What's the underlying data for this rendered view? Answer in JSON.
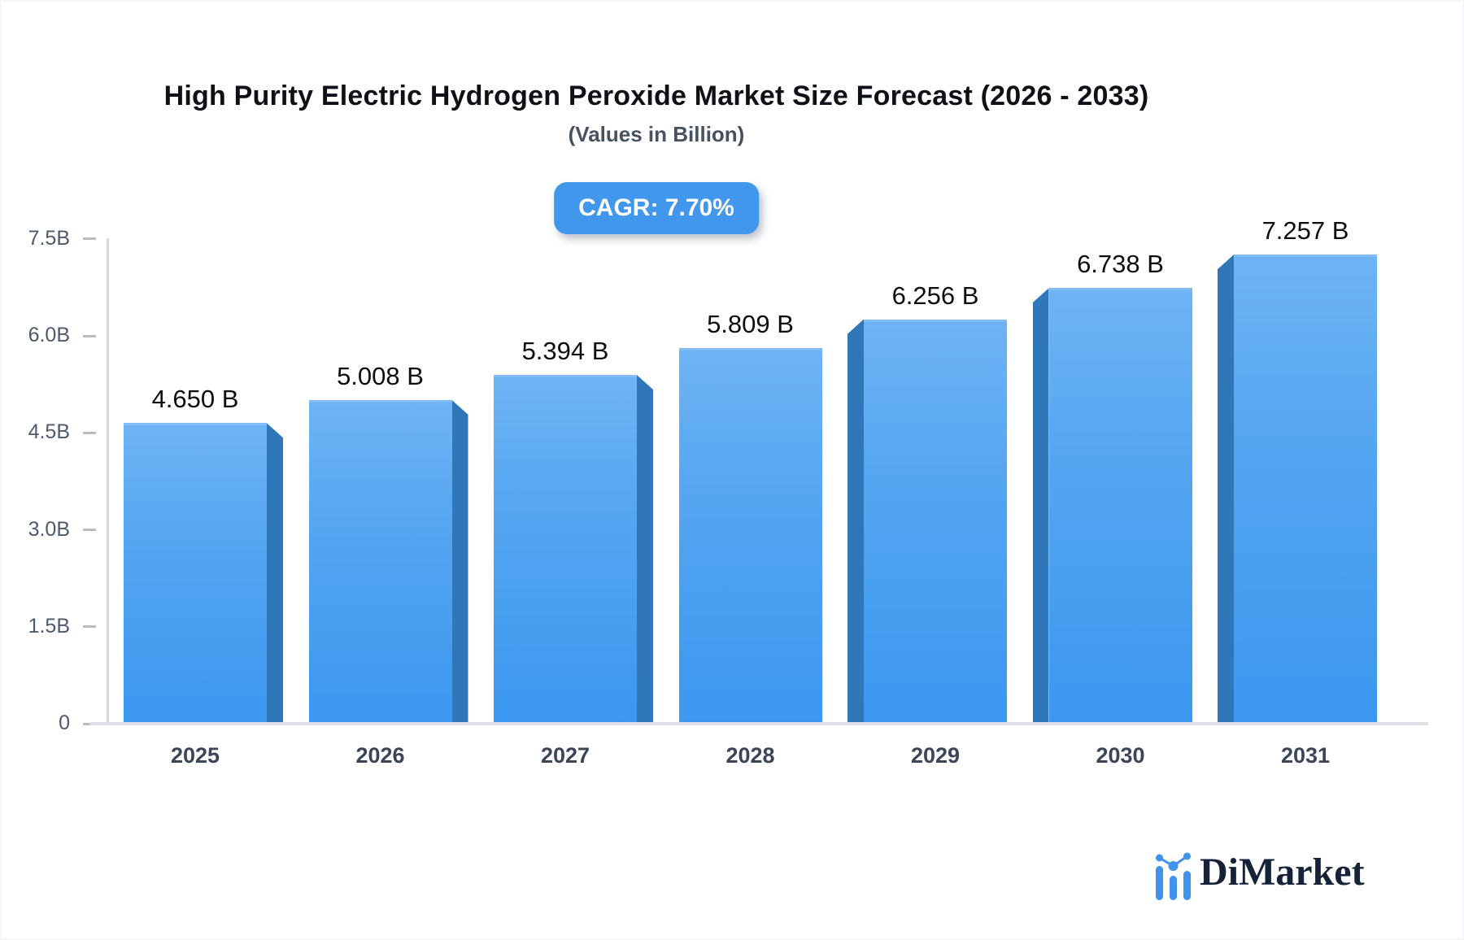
{
  "title": "High Purity Electric Hydrogen Peroxide Market Size Forecast (2026 - 2033)",
  "subtitle": "(Values in Billion)",
  "cagr_badge": "CAGR: 7.70%",
  "brand": {
    "name": "DiMarket",
    "icon": "bar-chart-logo-icon"
  },
  "colors": {
    "bar_front": "#3b97f0",
    "bar_front_light": "#6eb4f4",
    "bar_side": "#2f77b9",
    "badge_bg": "#4097ec",
    "badge_text": "#ffffff",
    "axis_line": "#dcdfe4",
    "tick": "#b6bcc6",
    "y_label": "#4c5a6e",
    "x_label": "#3a4657",
    "title_text": "#0e1116",
    "subtitle_text": "#475261",
    "brand_blue": "#3f93ee",
    "brand_navy": "#152238"
  },
  "chart_data": {
    "type": "bar",
    "title": "High Purity Electric Hydrogen Peroxide Market Size Forecast (2026 - 2033)",
    "subtitle": "(Values in Billion)",
    "categories": [
      "2025",
      "2026",
      "2027",
      "2028",
      "2029",
      "2030",
      "2031"
    ],
    "values": [
      4.65,
      5.008,
      5.394,
      5.809,
      6.256,
      6.738,
      7.257
    ],
    "value_labels": [
      "4.650 B",
      "5.008 B",
      "5.394 B",
      "5.809 B",
      "6.256 B",
      "6.738 B",
      "7.257 B"
    ],
    "xlabel": "",
    "ylabel": "",
    "ylim": [
      0,
      7.5
    ],
    "ytick_values": [
      7.5,
      6.0,
      4.5,
      3.0,
      1.5,
      0
    ],
    "ytick_labels": [
      "7.5B",
      "6.0B",
      "4.5B",
      "3.0B",
      "1.5B",
      "0"
    ],
    "grid": false,
    "legend": "none",
    "cagr_annotation": "CAGR: 7.70%",
    "bar_style": "3d-extruded, side faces angled toward center"
  }
}
